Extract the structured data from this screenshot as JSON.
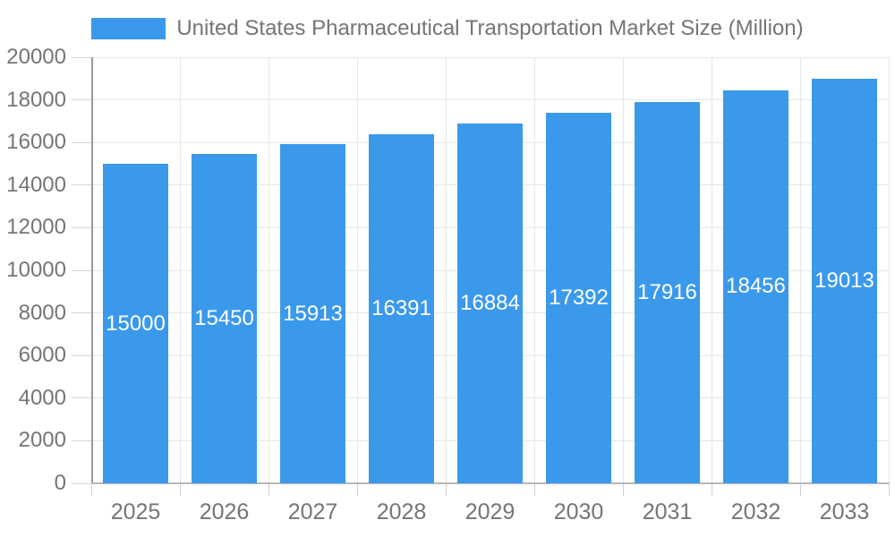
{
  "chart_data": {
    "type": "bar",
    "title": "United States Pharmaceutical Transportation Market Size (Million)",
    "legend": {
      "position": "top",
      "entries": [
        "United States Pharmaceutical Transportation Market Size (Million)"
      ]
    },
    "categories": [
      "2025",
      "2026",
      "2027",
      "2028",
      "2029",
      "2030",
      "2031",
      "2032",
      "2033"
    ],
    "series": [
      {
        "name": "United States Pharmaceutical Transportation Market Size (Million)",
        "values": [
          15000,
          15450,
          15913,
          16391,
          16884,
          17392,
          17916,
          18456,
          19013
        ]
      }
    ],
    "bar_value_labels": [
      "15000",
      "15450",
      "15913",
      "16391",
      "16884",
      "17392",
      "17916",
      "18456",
      "19013"
    ],
    "xlabel": "",
    "ylabel": "",
    "ylim": [
      0,
      20000
    ],
    "yticks": [
      0,
      2000,
      4000,
      6000,
      8000,
      10000,
      12000,
      14000,
      16000,
      18000,
      20000
    ],
    "grid": true,
    "colors": {
      "bar": "#3b99ec",
      "bar_value_label": "#ffffff",
      "axis_text": "#757575",
      "title_text": "#757575",
      "gridline": "#e6e6e6",
      "y_axis_line": "#999999",
      "x_axis_line": "#b8b8b8",
      "background": "#ffffff"
    }
  }
}
